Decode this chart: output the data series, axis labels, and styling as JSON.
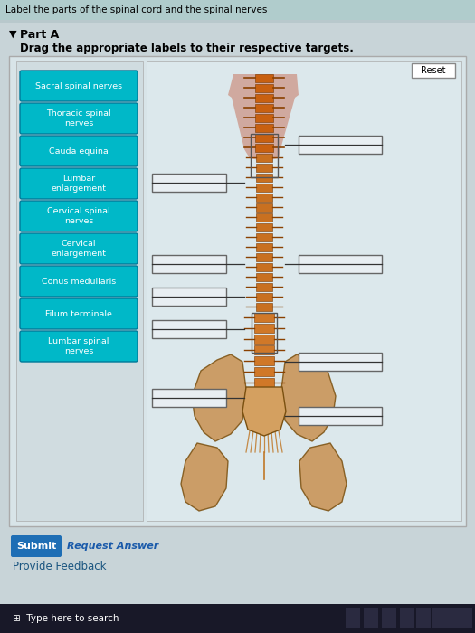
{
  "title_bar_text": "Label the parts of the spinal cord and the spinal nerves",
  "title_bar_bg": "#b0cccc",
  "part_a_text": "Part A",
  "instruction_text": "Drag the appropriate labels to their respective targets.",
  "bg_color": "#c8d4d8",
  "main_box_bg": "#dce8ec",
  "inner_area_bg": "#e4edf0",
  "label_buttons": [
    "Sacral spinal nerves",
    "Thoracic spinal\nnerves",
    "Cauda equina",
    "Lumbar\nenlargement",
    "Cervical spinal\nnerves",
    "Cervical\nenlargement",
    "Conus medullaris",
    "Filum terminale",
    "Lumbar spinal\nnerves"
  ],
  "button_color": "#00b8c8",
  "button_text_color": "#ffffff",
  "reset_button_text": "Reset",
  "submit_button_text": "Submit",
  "submit_bg": "#1e6eb5",
  "request_answer_text": "Request Answer",
  "provide_feedback_text": "Provide Feedback",
  "taskbar_bg": "#181828"
}
